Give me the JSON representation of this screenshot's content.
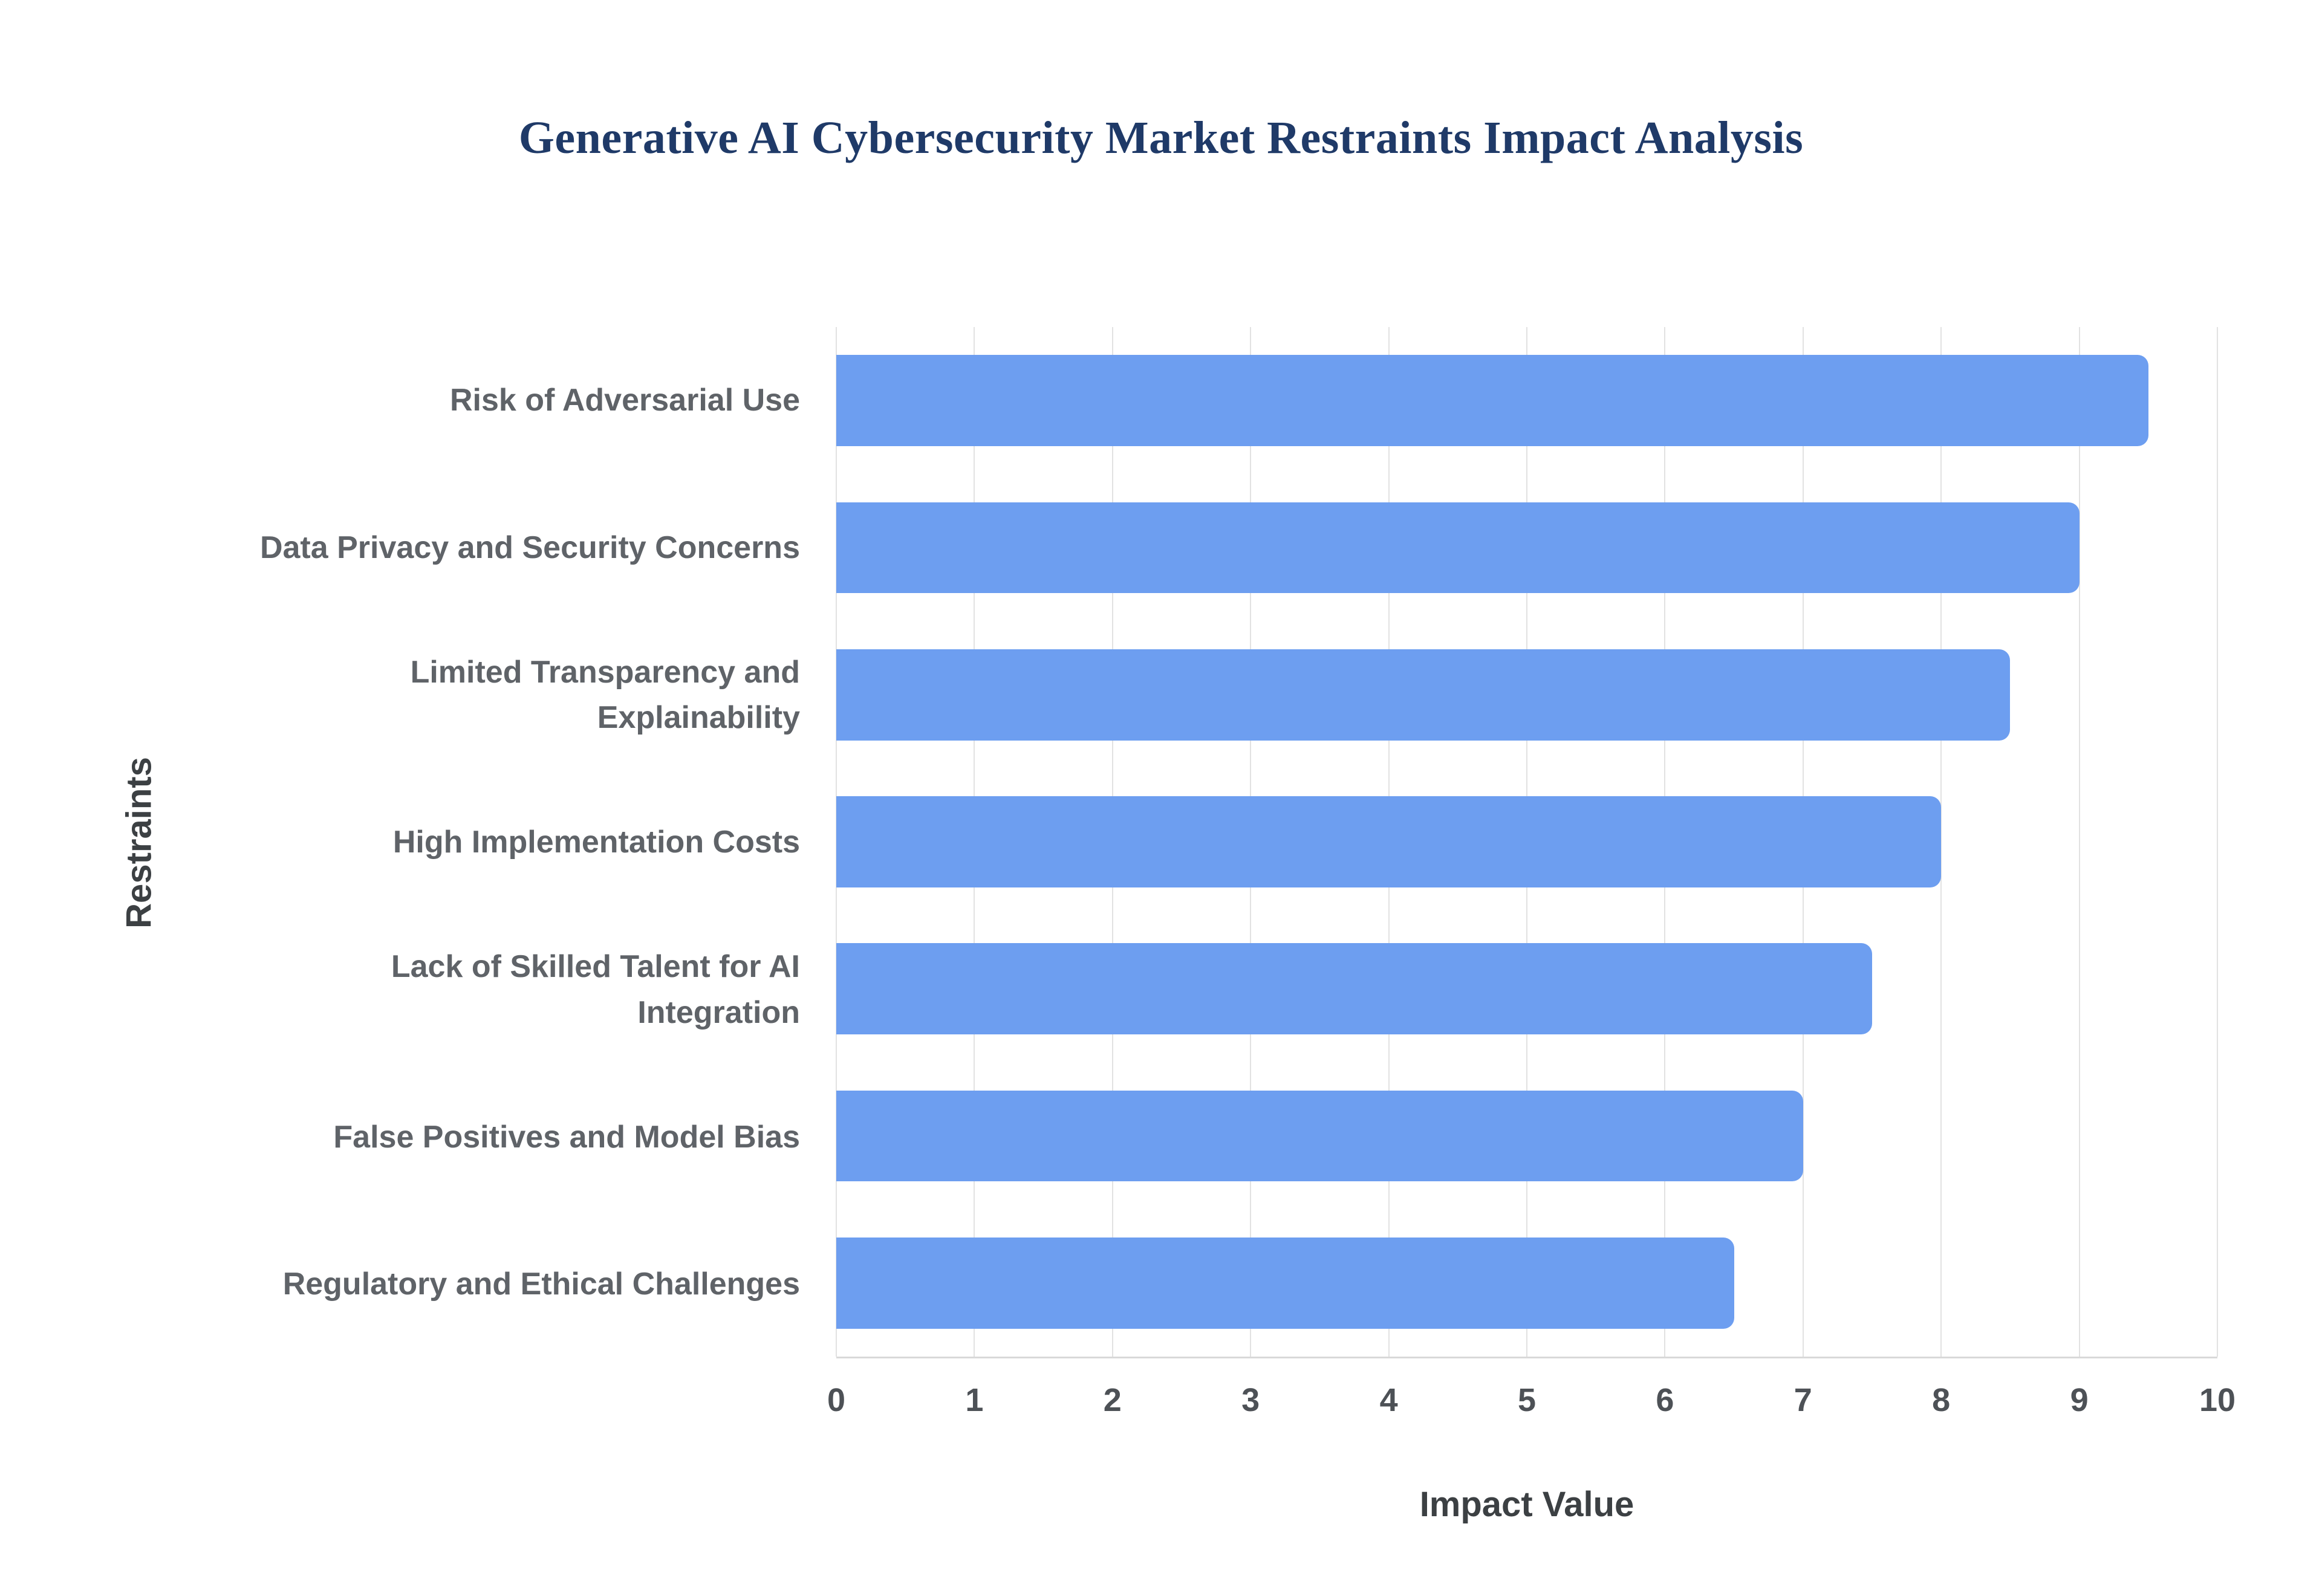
{
  "chart_data": {
    "type": "bar",
    "orientation": "horizontal",
    "title": "Generative AI Cybersecurity Market Restraints Impact Analysis",
    "xlabel": "Impact Value",
    "ylabel": "Restraints",
    "categories": [
      "Risk of Adversarial Use",
      "Data Privacy and Security Concerns",
      "Limited Transparency and Explainability",
      "High Implementation Costs",
      "Lack of Skilled Talent for AI Integration",
      "False Positives and Model Bias",
      "Regulatory and Ethical Challenges"
    ],
    "values": [
      9.5,
      9.0,
      8.5,
      8.0,
      7.5,
      7.0,
      6.5
    ],
    "xlim": [
      0,
      10
    ],
    "x_tick_step": 1,
    "x_tick_labels": [
      "0",
      "1",
      "2",
      "3",
      "4",
      "5",
      "6",
      "7",
      "8",
      "9",
      "10"
    ],
    "grid": "vertical",
    "legend": "none",
    "bar_color": "#6d9ef0",
    "title_color": "#1f3a68",
    "label_color": "#5f6368",
    "tick_color": "#4d5156",
    "axis_title_color": "#3c4043",
    "background_color": "#ffffff"
  }
}
